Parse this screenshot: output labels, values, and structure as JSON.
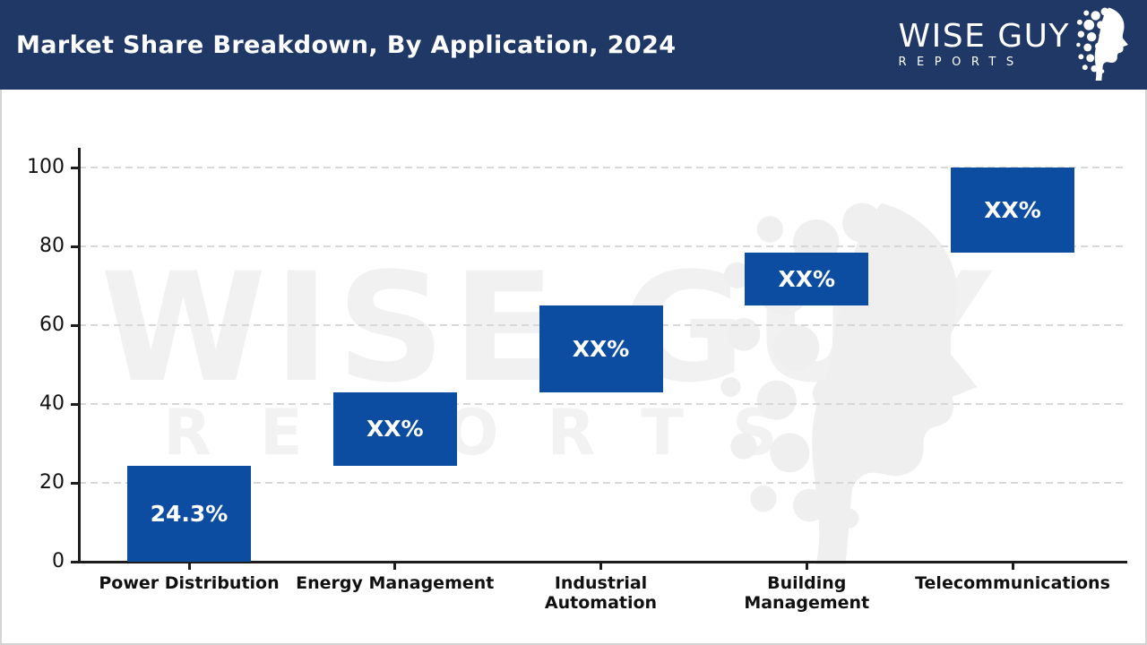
{
  "header": {
    "title": "Market Share Breakdown, By Application, 2024",
    "logo": {
      "brand": "WISE GUY",
      "sub": "REPORTS"
    }
  },
  "watermark": {
    "line1": "WISE GUY",
    "line2": "REPORTS"
  },
  "colors": {
    "header_bg": "#1f3865",
    "bar": "#0c4da2",
    "grid": "#d8d8d8",
    "axis": "#1c1c1c",
    "bar_label": "#ffffff",
    "edge_border": "#d4d4d4"
  },
  "chart_data": {
    "type": "bar",
    "subtype": "waterfall",
    "title": "Market Share Breakdown, By Application, 2024",
    "categories": [
      "Power Distribution",
      "Energy Management",
      "Industrial\nAutomation",
      "Building\nManagement",
      "Telecommunications"
    ],
    "segments": [
      {
        "category": "Power Distribution",
        "start": 0,
        "end": 24.3,
        "label": "24.3%"
      },
      {
        "category": "Energy Management",
        "start": 24.3,
        "end": 43,
        "label": "XX%"
      },
      {
        "category": "Industrial Automation",
        "start": 43,
        "end": 65,
        "label": "XX%"
      },
      {
        "category": "Building Management",
        "start": 65,
        "end": 78.5,
        "label": "XX%"
      },
      {
        "category": "Telecommunications",
        "start": 78.5,
        "end": 100,
        "label": "XX%"
      }
    ],
    "yticks": [
      0,
      20,
      40,
      60,
      80,
      100
    ],
    "ylim": [
      0,
      105
    ],
    "xlabel": "",
    "ylabel": "",
    "grid": "horizontal-dashed",
    "legend": "none",
    "bar_color": "#0c4da2"
  }
}
